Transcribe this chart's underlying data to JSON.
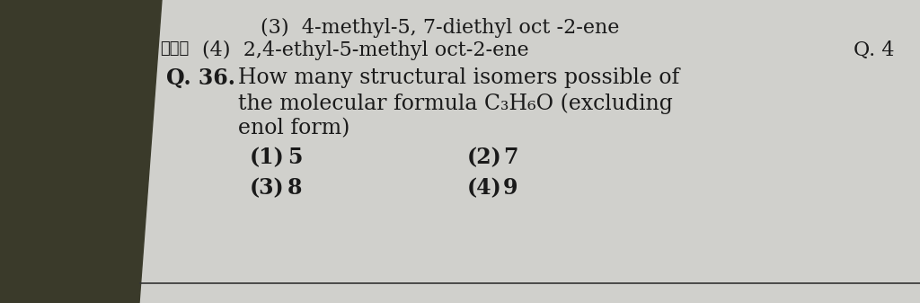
{
  "bg_left_color": "#3a3a2a",
  "paper_color": "#d0d0cc",
  "line3": "(3)  4-methyl-5, 7-diethyl oct -2-ene",
  "line4_mark": "✗✗✗",
  "line4": "(4)  2,4-ethyl-5-methyl oct-2-ene",
  "line4_right": "Q. 4",
  "q36_label": "Q. 36.",
  "q36_text_line1": "How many structural isomers possible of",
  "q36_text_line2": "the molecular formula C₃H₆O (excluding",
  "q36_text_line3": "enol form)",
  "opt1_label": "(1)",
  "opt1_val": "5",
  "opt2_label": "(2)",
  "opt2_val": "7",
  "opt3_label": "(3)",
  "opt3_val": "8",
  "opt4_label": "(4)",
  "opt4_val": "9",
  "text_color": "#1a1a1a",
  "font_size_main": 16,
  "font_size_opts": 17,
  "font_size_q36": 17
}
